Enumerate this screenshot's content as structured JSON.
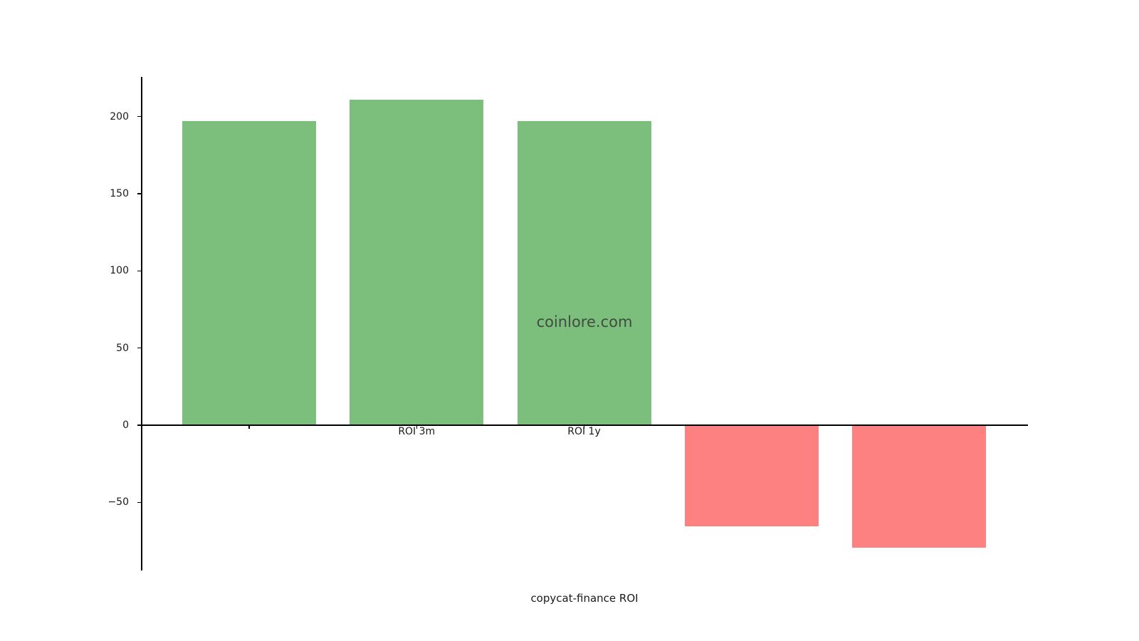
{
  "chart_data": {
    "type": "bar",
    "title": "copycat-finance ROI",
    "watermark": "coinlore.com",
    "categories": [
      "",
      "ROI 3m",
      "ROI 1y",
      "",
      ""
    ],
    "values": [
      197,
      211,
      197,
      -65,
      -79
    ],
    "series": [
      {
        "name": "ROI",
        "values": [
          197,
          211,
          197,
          -65,
          -79
        ]
      }
    ],
    "bar_colors": [
      "#7cbe7c",
      "#7cbe7c",
      "#7cbe7c",
      "#fd8181",
      "#fd8181"
    ],
    "colors": {
      "positive": "#7cbe7c",
      "negative": "#fd8181",
      "axis": "#000000",
      "tick_text": "#1a1a1a",
      "watermark": "#373737"
    },
    "yticks": [
      200,
      150,
      100,
      50,
      0,
      -50
    ],
    "ytick_labels": [
      "200",
      "150",
      "100",
      "50",
      "0",
      "−50"
    ],
    "xticks": [
      {
        "position": 0,
        "label": ""
      },
      {
        "position": 1,
        "label": "ROI 3m"
      },
      {
        "position": 2,
        "label": "ROI 1y"
      }
    ],
    "ylim": [
      -94,
      225.5
    ],
    "xlabel": "",
    "ylabel": "",
    "grid": false,
    "legend": "none"
  }
}
